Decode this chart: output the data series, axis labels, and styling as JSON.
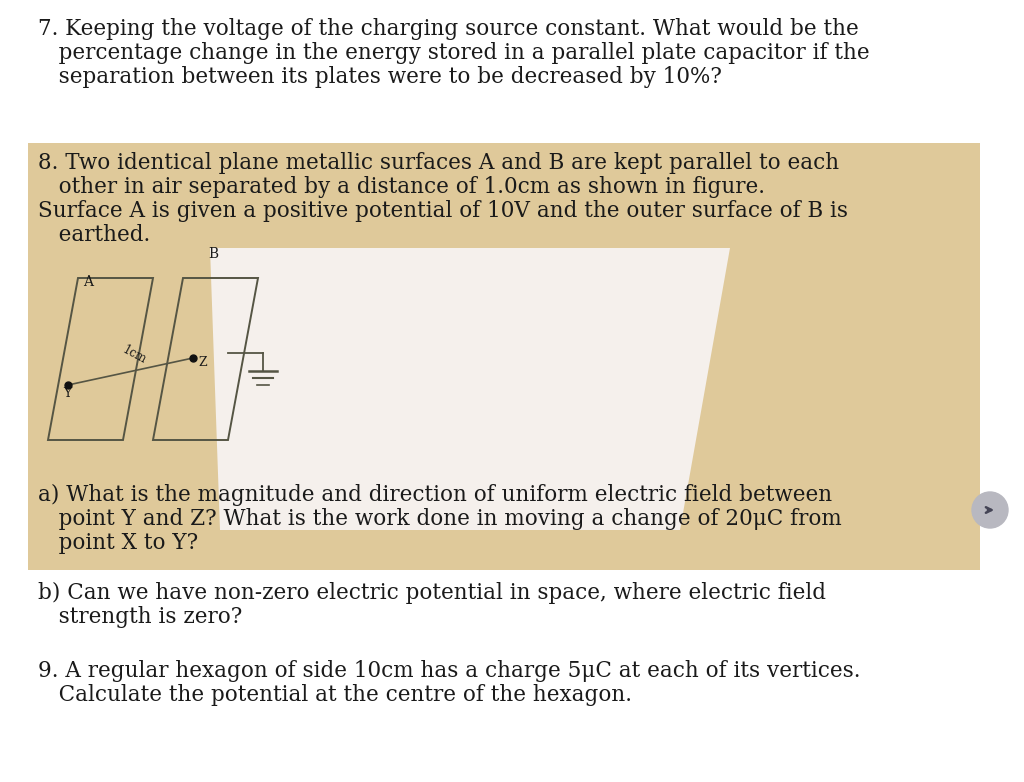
{
  "white_bg": "#ffffff",
  "text_color": "#1a1a1a",
  "highlight_color": "#dfc99a",
  "white_v_color": "#f0ebe0",
  "diagram_color": "#888877",
  "q7_line1": "7. Keeping the voltage of the charging source constant. What would be the",
  "q7_line2": "   percentage change in the energy stored in a parallel plate capacitor if the",
  "q7_line3": "   separation between its plates were to be decreased by 10%?",
  "q8_line1": "8. Two identical plane metallic surfaces A and B are kept parallel to each",
  "q8_line2": "   other in air separated by a distance of 1.0cm as shown in figure.",
  "q8_line3": "Surface A is given a positive potential of 10V and the outer surface of B is",
  "q8_line4": "   earthed.",
  "qa_line1": "a) What is the magnitude and direction of uniform electric field between",
  "qa_line2": "   point Y and Z? What is the work done in moving a change of 20μC from",
  "qa_line3": "   point X to Y?",
  "qb_line1": "b) Can we have non-zero electric potential in space, where electric field",
  "qb_line2": "   strength is zero?",
  "q9_line1": "9. A regular hexagon of side 10cm has a charge 5μC at each of its vertices.",
  "q9_line2": "   Calculate the potential at the centre of the hexagon.",
  "fs": 15.5
}
